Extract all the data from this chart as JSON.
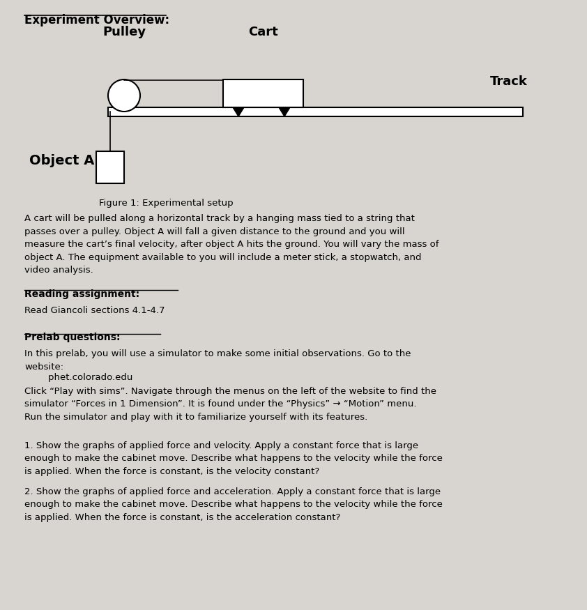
{
  "background_color": "#d8d5d0",
  "title": "Experiment Overview:",
  "pulley_label": "Pulley",
  "cart_label": "Cart",
  "track_label": "Track",
  "objecta_label": "Object A",
  "figure_caption": "Figure 1: Experimental setup",
  "paragraph1": "A cart will be pulled along a horizontal track by a hanging mass tied to a string that\npasses over a pulley. Object A will fall a given distance to the ground and you will\nmeasure the cart’s final velocity, after object A hits the ground. You will vary the mass of\nobject A. The equipment available to you will include a meter stick, a stopwatch, and\nvideo analysis.",
  "reading_title": "Reading assignment:",
  "reading_text": "Read Giancoli sections 4.1-4.7",
  "prelab_title": "Prelab questions:",
  "prelab_intro": "In this prelab, you will use a simulator to make some initial observations. Go to the\nwebsite:",
  "prelab_website": "        phet.colorado.edu",
  "prelab_click": "Click “Play with sims”. Navigate through the menus on the left of the website to find the\nsimulator “Forces in 1 Dimension”. It is found under the “Physics” → “Motion” menu.\nRun the simulator and play with it to familiarize yourself with its features.",
  "q1": "1. Show the graphs of applied force and velocity. Apply a constant force that is large\nenough to make the cabinet move. Describe what happens to the velocity while the force\nis applied. When the force is constant, is the velocity constant?",
  "q2": "2. Show the graphs of applied force and acceleration. Apply a constant force that is large\nenough to make the cabinet move. Describe what happens to the velocity while the force\nis applied. When the force is constant, is the acceleration constant?"
}
